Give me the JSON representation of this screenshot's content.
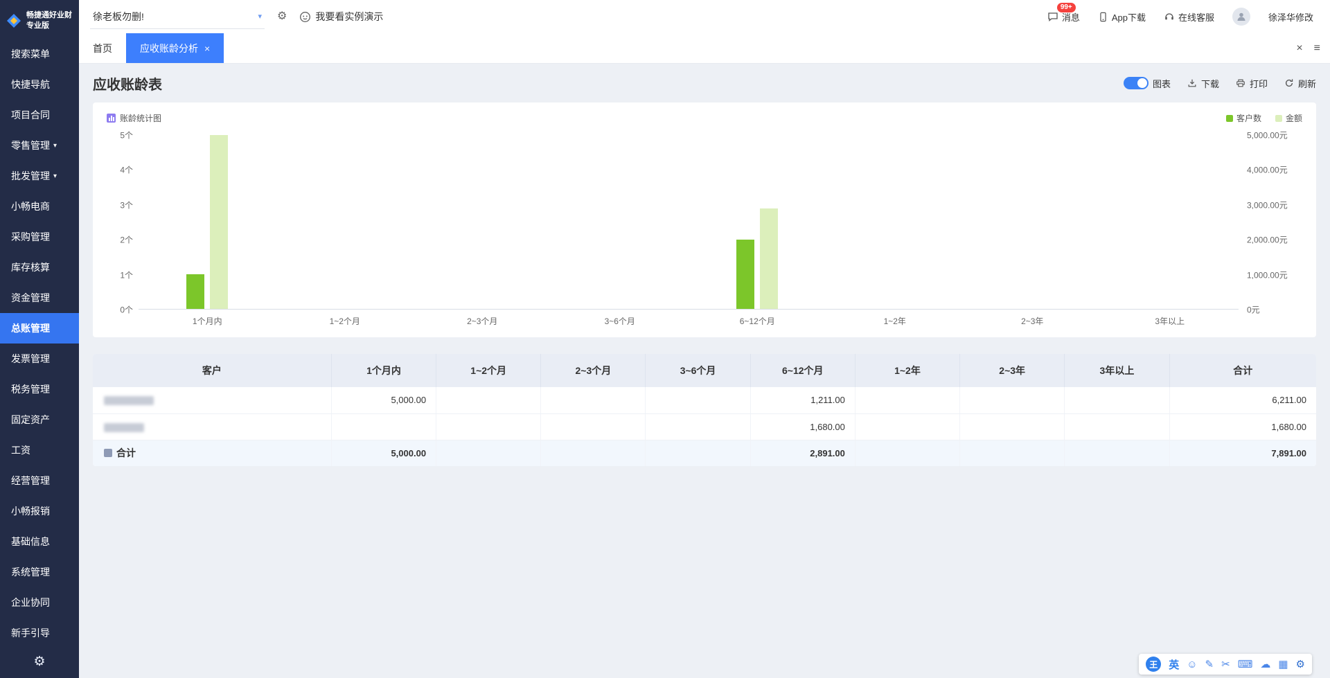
{
  "app": {
    "brand_line1": "畅捷通好业财",
    "brand_line2": "专业版"
  },
  "sidebar": {
    "items": [
      {
        "label": "搜索菜单"
      },
      {
        "label": "快捷导航"
      },
      {
        "label": "项目合同"
      },
      {
        "label": "零售管理",
        "arrow": true
      },
      {
        "label": "批发管理",
        "arrow": true
      },
      {
        "label": "小畅电商"
      },
      {
        "label": "采购管理"
      },
      {
        "label": "库存核算"
      },
      {
        "label": "资金管理"
      },
      {
        "label": "总账管理",
        "active": true
      },
      {
        "label": "发票管理"
      },
      {
        "label": "税务管理"
      },
      {
        "label": "固定资产"
      },
      {
        "label": "工资"
      },
      {
        "label": "经营管理"
      },
      {
        "label": "小畅报销"
      },
      {
        "label": "基础信息"
      },
      {
        "label": "系统管理"
      },
      {
        "label": "企业协同"
      },
      {
        "label": "新手引导"
      }
    ]
  },
  "topbar": {
    "company_select": "徐老板勿删!",
    "demo_link": "我要看实例演示",
    "messages_label": "消息",
    "messages_badge": "99+",
    "app_download": "App下载",
    "online_service": "在线客服",
    "username": "徐泽华修改"
  },
  "tabs": {
    "home": "首页",
    "active_tab": "应收账龄分析"
  },
  "page": {
    "title": "应收账龄表",
    "toggle_label": "图表",
    "download_label": "下载",
    "print_label": "打印",
    "refresh_label": "刷新"
  },
  "chart_data": {
    "type": "bar",
    "title": "账龄统计图",
    "categories": [
      "1个月内",
      "1~2个月",
      "2~3个月",
      "3~6个月",
      "6~12个月",
      "1~2年",
      "2~3年",
      "3年以上"
    ],
    "series": [
      {
        "name": "客户数",
        "color": "#7cc62a",
        "axis": "left",
        "values": [
          1,
          0,
          0,
          0,
          2,
          0,
          0,
          0
        ]
      },
      {
        "name": "金额",
        "color": "#dcefbb",
        "axis": "right",
        "values": [
          5000,
          0,
          0,
          0,
          2891,
          0,
          0,
          0
        ]
      }
    ],
    "left_axis": {
      "ticks": [
        "0个",
        "1个",
        "2个",
        "3个",
        "4个",
        "5个"
      ],
      "max": 5
    },
    "right_axis": {
      "ticks": [
        "0元",
        "1,000.00元",
        "2,000.00元",
        "3,000.00元",
        "4,000.00元",
        "5,000.00元"
      ],
      "max": 5000
    },
    "grid": false,
    "legend_position": "top-right"
  },
  "table": {
    "headers": [
      "客户",
      "1个月内",
      "1~2个月",
      "2~3个月",
      "3~6个月",
      "6~12个月",
      "1~2年",
      "2~3年",
      "3年以上",
      "合计"
    ],
    "rows": [
      {
        "customer_redacted": true,
        "values": [
          "5,000.00",
          "",
          "",
          "",
          "1,211.00",
          "",
          "",
          "",
          "6,211.00"
        ]
      },
      {
        "customer_redacted": true,
        "values": [
          "",
          "",
          "",
          "",
          "1,680.00",
          "",
          "",
          "",
          "1,680.00"
        ]
      }
    ],
    "total": {
      "label": "合计",
      "values": [
        "5,000.00",
        "",
        "",
        "",
        "2,891.00",
        "",
        "",
        "",
        "7,891.00"
      ]
    }
  },
  "ime": {
    "badge": "王",
    "lang": "英"
  }
}
